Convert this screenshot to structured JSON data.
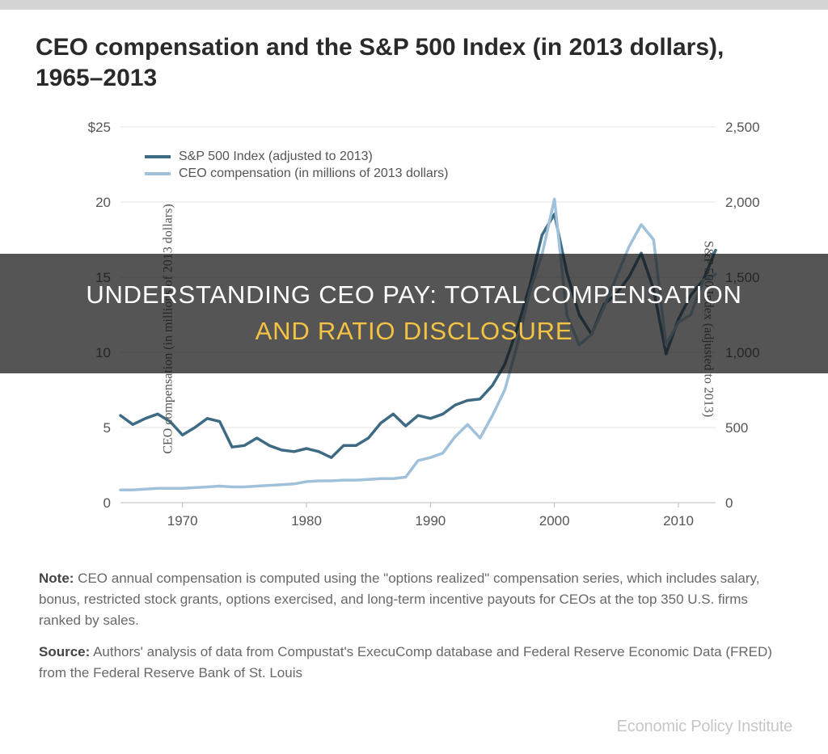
{
  "topbar_color": "#d4d4d4",
  "title": "CEO compensation and the S&P 500 Index (in 2013 dollars), 1965–2013",
  "overlay": {
    "line1": "UNDERSTANDING CEO PAY: TOTAL COMPENSATION",
    "line2_highlight": "AND RATIO DISCLOSURE"
  },
  "chart": {
    "type": "line_dual_axis",
    "background_color": "#ffffff",
    "grid_color": "#e3e3e3",
    "axis_line_color": "#b8b8b8",
    "tick_color": "#888",
    "tick_fontsize": 17,
    "label_fontsize": 16,
    "left_axis": {
      "label": "CEO compensation (in millions of 2013 dollars)",
      "min": 0,
      "max": 25,
      "step": 5,
      "prefix_first": "$",
      "ticks": [
        "0",
        "5",
        "10",
        "15",
        "20",
        "$25"
      ]
    },
    "right_axis": {
      "label": "S&P 500 Index (adjusted to 2013)",
      "min": 0,
      "max": 2500,
      "step": 500,
      "ticks": [
        "0",
        "500",
        "1,000",
        "1,500",
        "2,000",
        "2,500"
      ]
    },
    "x_axis": {
      "min": 1965,
      "max": 2013,
      "ticks": [
        1970,
        1980,
        1990,
        2000,
        2010
      ]
    },
    "legend": {
      "items": [
        {
          "label": "S&P 500 Index (adjusted to 2013)",
          "color": "#3e6b84"
        },
        {
          "label": "CEO compensation (in millions of 2013 dollars)",
          "color": "#9fc1da"
        }
      ]
    },
    "series": [
      {
        "name": "sp500",
        "color": "#3e6b84",
        "line_width": 3.5,
        "axis": "right",
        "data": [
          [
            1965,
            580
          ],
          [
            1966,
            520
          ],
          [
            1967,
            560
          ],
          [
            1968,
            590
          ],
          [
            1969,
            540
          ],
          [
            1970,
            450
          ],
          [
            1971,
            500
          ],
          [
            1972,
            560
          ],
          [
            1973,
            540
          ],
          [
            1974,
            370
          ],
          [
            1975,
            380
          ],
          [
            1976,
            430
          ],
          [
            1977,
            380
          ],
          [
            1978,
            350
          ],
          [
            1979,
            340
          ],
          [
            1980,
            360
          ],
          [
            1981,
            340
          ],
          [
            1982,
            300
          ],
          [
            1983,
            380
          ],
          [
            1984,
            380
          ],
          [
            1985,
            430
          ],
          [
            1986,
            530
          ],
          [
            1987,
            590
          ],
          [
            1988,
            510
          ],
          [
            1989,
            580
          ],
          [
            1990,
            560
          ],
          [
            1991,
            590
          ],
          [
            1992,
            650
          ],
          [
            1993,
            680
          ],
          [
            1994,
            690
          ],
          [
            1995,
            780
          ],
          [
            1996,
            920
          ],
          [
            1997,
            1160
          ],
          [
            1998,
            1440
          ],
          [
            1999,
            1780
          ],
          [
            2000,
            1920
          ],
          [
            2001,
            1530
          ],
          [
            2002,
            1250
          ],
          [
            2003,
            1120
          ],
          [
            2004,
            1320
          ],
          [
            2005,
            1390
          ],
          [
            2006,
            1500
          ],
          [
            2007,
            1660
          ],
          [
            2008,
            1420
          ],
          [
            2009,
            990
          ],
          [
            2010,
            1220
          ],
          [
            2011,
            1380
          ],
          [
            2012,
            1480
          ],
          [
            2013,
            1680
          ]
        ]
      },
      {
        "name": "ceo_comp",
        "color": "#9fc1da",
        "line_width": 3.5,
        "axis": "left",
        "data": [
          [
            1965,
            0.85
          ],
          [
            1966,
            0.85
          ],
          [
            1967,
            0.9
          ],
          [
            1968,
            0.95
          ],
          [
            1969,
            0.95
          ],
          [
            1970,
            0.95
          ],
          [
            1971,
            1.0
          ],
          [
            1972,
            1.05
          ],
          [
            1973,
            1.1
          ],
          [
            1974,
            1.05
          ],
          [
            1975,
            1.05
          ],
          [
            1976,
            1.1
          ],
          [
            1977,
            1.15
          ],
          [
            1978,
            1.2
          ],
          [
            1979,
            1.25
          ],
          [
            1980,
            1.4
          ],
          [
            1981,
            1.45
          ],
          [
            1982,
            1.45
          ],
          [
            1983,
            1.5
          ],
          [
            1984,
            1.5
          ],
          [
            1985,
            1.55
          ],
          [
            1986,
            1.6
          ],
          [
            1987,
            1.6
          ],
          [
            1988,
            1.7
          ],
          [
            1989,
            2.8
          ],
          [
            1990,
            3.0
          ],
          [
            1991,
            3.3
          ],
          [
            1992,
            4.4
          ],
          [
            1993,
            5.2
          ],
          [
            1994,
            4.3
          ],
          [
            1995,
            5.8
          ],
          [
            1996,
            7.5
          ],
          [
            1997,
            10.5
          ],
          [
            1998,
            14.0
          ],
          [
            1999,
            16.5
          ],
          [
            2000,
            20.2
          ],
          [
            2001,
            12.5
          ],
          [
            2002,
            10.5
          ],
          [
            2003,
            11.2
          ],
          [
            2004,
            13.0
          ],
          [
            2005,
            15.0
          ],
          [
            2006,
            17.0
          ],
          [
            2007,
            18.5
          ],
          [
            2008,
            17.5
          ],
          [
            2009,
            10.5
          ],
          [
            2010,
            12.0
          ],
          [
            2011,
            12.5
          ],
          [
            2012,
            14.8
          ],
          [
            2013,
            15.2
          ]
        ]
      }
    ]
  },
  "notes": {
    "note_label": "Note:",
    "note_text": " CEO annual compensation is computed using the \"options realized\" compensation series, which includes salary, bonus, restricted stock grants, options exercised, and long-term incentive payouts for CEOs at the top 350 U.S. firms ranked by sales.",
    "source_label": "Source:",
    "source_text": " Authors' analysis of data from Compustat's ExecuComp database and Federal Reserve Economic Data (FRED) from the Federal Reserve Bank of St. Louis"
  },
  "attribution": "Economic Policy Institute"
}
